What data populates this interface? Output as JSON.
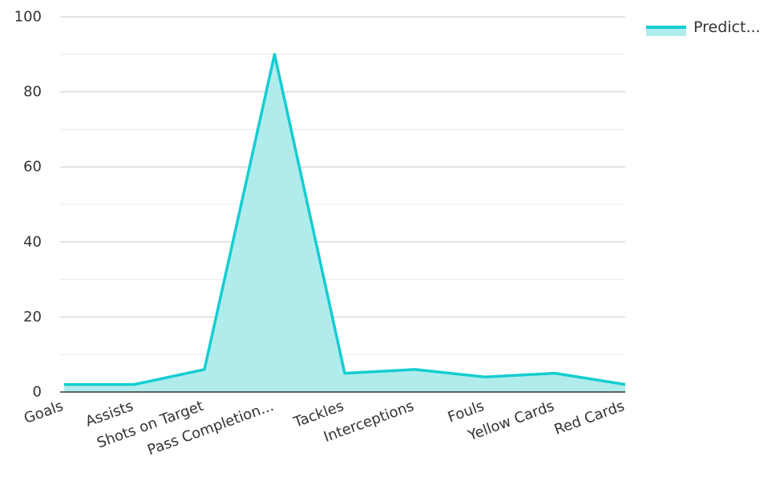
{
  "chart_data": {
    "type": "area",
    "categories": [
      "Goals",
      "Assists",
      "Shots on Target",
      "Pass Completion...",
      "Tackles",
      "Interceptions",
      "Fouls",
      "Yellow Cards",
      "Red Cards"
    ],
    "series": [
      {
        "name": "Predict...",
        "values": [
          2,
          2,
          6,
          90,
          5,
          6,
          4,
          5,
          2
        ],
        "color": "#14cdd0",
        "fill_color": "#b1ecec"
      }
    ],
    "ylim": [
      0,
      100
    ],
    "yticks": [
      "0",
      "20",
      "40",
      "60",
      "80",
      "100"
    ],
    "grid": true,
    "legend_position": "top-right",
    "title": "",
    "xlabel": "",
    "ylabel": ""
  }
}
